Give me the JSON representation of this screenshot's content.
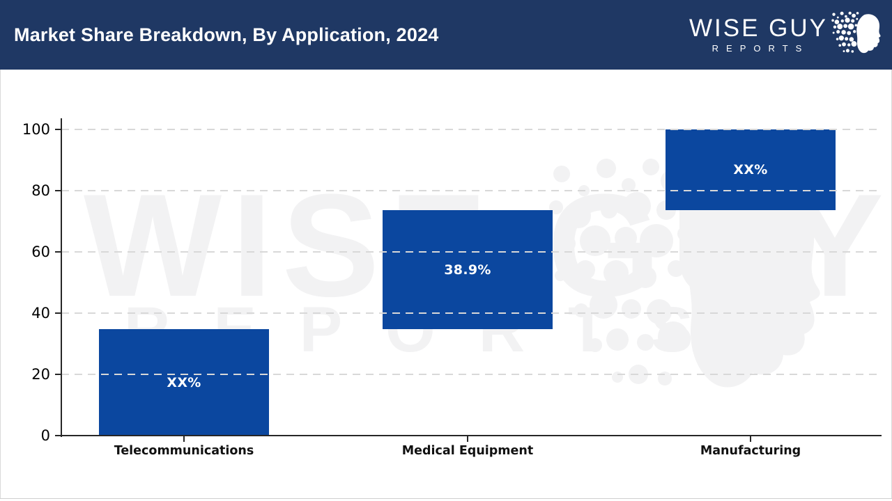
{
  "header": {
    "title": "Market Share Breakdown, By Application, 2024",
    "bg_color": "#1f3864",
    "logo": {
      "line1": "WISE GUY",
      "line2": "REPORTS"
    }
  },
  "watermark": {
    "line1": "WISE GUY",
    "line2": "REPORTS"
  },
  "chart_data": {
    "type": "bar",
    "subtype": "waterfall-segments",
    "title": "Market Share Breakdown, By Application, 2024",
    "categories": [
      "Telecommunications",
      "Medical Equipment",
      "Manufacturing"
    ],
    "bars": [
      {
        "category": "Telecommunications",
        "start": 0,
        "end": 34.7,
        "value": 34.7,
        "label": "XX%"
      },
      {
        "category": "Medical Equipment",
        "start": 34.7,
        "end": 73.6,
        "value": 38.9,
        "label": "38.9%"
      },
      {
        "category": "Manufacturing",
        "start": 73.6,
        "end": 100,
        "value": 26.4,
        "label": "XX%"
      }
    ],
    "xlabel": "",
    "ylabel": "",
    "ylim": [
      0,
      100
    ],
    "yticks": [
      0,
      20,
      40,
      60,
      80,
      100
    ],
    "grid": "horizontal-dashed-over-bars",
    "legend": "none",
    "bar_color": "#0b479f",
    "gridline_color": "#d8d8d8",
    "axis_color": "#262626"
  }
}
